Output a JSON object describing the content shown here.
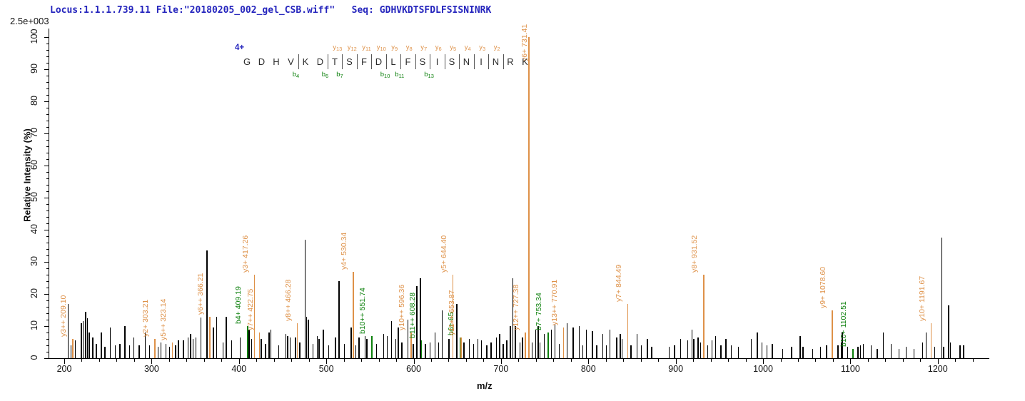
{
  "header": {
    "locus_file": "Locus:1.1.1.739.11 File:\"20180205_002_gel_CSB.wiff\"",
    "separator": "   ",
    "seq": "Seq: GDHVKDTSFDLFSISNINRK"
  },
  "chart_data": {
    "type": "bar",
    "subtype": "ms2-fragmentation-spectrum",
    "xlabel": "m/z",
    "ylabel": "Relative  Intensity (%)",
    "scale_label": "2.5e+003",
    "xlim": [
      183,
      1259
    ],
    "ylim": [
      0,
      100
    ],
    "x_major_ticks": [
      200,
      300,
      400,
      500,
      600,
      700,
      800,
      900,
      1000,
      1100,
      1200
    ],
    "x_minor_step": 20,
    "x_minor_range": [
      200,
      1240
    ],
    "y_major_ticks": [
      0,
      10,
      20,
      30,
      40,
      50,
      60,
      70,
      80,
      90,
      100
    ],
    "y_minor_step": 2,
    "grid": false,
    "legend": "none",
    "colors": {
      "y_ion": "#DE9148",
      "b_ion": "#0C800C",
      "peak": "#000000",
      "charge_blue": "#2525BD"
    },
    "precursor_charge": "4+",
    "peptide": {
      "residues": [
        "G",
        "D",
        "H",
        "V",
        "K",
        "D",
        "T",
        "S",
        "F",
        "D",
        "L",
        "F",
        "S",
        "I",
        "S",
        "N",
        "I",
        "N",
        "R",
        "K"
      ],
      "y_ion_marks": [
        {
          "series": "y",
          "index": "13",
          "gap_after": 7
        },
        {
          "series": "y",
          "index": "12",
          "gap_after": 8
        },
        {
          "series": "y",
          "index": "11",
          "gap_after": 9
        },
        {
          "series": "y",
          "index": "10",
          "gap_after": 10
        },
        {
          "series": "y",
          "index": "9",
          "gap_after": 11
        },
        {
          "series": "y",
          "index": "8",
          "gap_after": 12
        },
        {
          "series": "y",
          "index": "7",
          "gap_after": 13
        },
        {
          "series": "y",
          "index": "6",
          "gap_after": 14
        },
        {
          "series": "y",
          "index": "5",
          "gap_after": 15
        },
        {
          "series": "y",
          "index": "4",
          "gap_after": 16
        },
        {
          "series": "y",
          "index": "3",
          "gap_after": 17
        },
        {
          "series": "y",
          "index": "2",
          "gap_after": 18
        }
      ],
      "b_ion_marks": [
        {
          "series": "b",
          "index": "4",
          "gap_after": 4
        },
        {
          "series": "b",
          "index": "6",
          "gap_after": 6
        },
        {
          "series": "b",
          "index": "7",
          "gap_after": 7
        },
        {
          "series": "b",
          "index": "10",
          "gap_after": 10
        },
        {
          "series": "b",
          "index": "11",
          "gap_after": 11
        },
        {
          "series": "b",
          "index": "13",
          "gap_after": 13
        }
      ]
    },
    "labeled_peaks": [
      {
        "label": "y3++ 209.10",
        "mz": 209.1,
        "pct": 6,
        "type": "y"
      },
      {
        "label": "y2+ 303.21",
        "mz": 303.21,
        "pct": 6,
        "type": "y"
      },
      {
        "label": "y5++ 323.14",
        "mz": 323.14,
        "pct": 5,
        "type": "y"
      },
      {
        "label": "y6++ 366.21",
        "mz": 366.21,
        "pct": 13,
        "type": "y"
      },
      {
        "label": "b4+ 409.19",
        "mz": 409.19,
        "pct": 10,
        "type": "b"
      },
      {
        "label": "y3+ 417.26",
        "mz": 417.26,
        "pct": 26,
        "type": "y"
      },
      {
        "label": "y7++ 422.75",
        "mz": 422.75,
        "pct": 8,
        "type": "y"
      },
      {
        "label": "y8++ 466.28",
        "mz": 466.28,
        "pct": 11,
        "type": "y"
      },
      {
        "label": "y4+ 530.34",
        "mz": 530.34,
        "pct": 27,
        "type": "y"
      },
      {
        "label": "b10++ 551.74",
        "mz": 551.74,
        "pct": 7,
        "type": "b"
      },
      {
        "label": "y10++ 596.36",
        "mz": 596.36,
        "pct": 8,
        "type": "y"
      },
      {
        "label": "b11++ 608.28",
        "mz": 608.28,
        "pct": 5.5,
        "type": "b"
      },
      {
        "label": "y5+ 644.40",
        "mz": 644.4,
        "pct": 26,
        "type": "y"
      },
      {
        "label": "b6+ 65",
        "mz": 652.3,
        "pct": 6.5,
        "type": "b"
      },
      {
        "label": "y11++ 653.87",
        "mz": 653.87,
        "pct": 6.5,
        "type": "y"
      },
      {
        "label": "y12++ 727.38",
        "mz": 727.38,
        "pct": 8,
        "type": "y"
      },
      {
        "label": "y6+ 731.41",
        "mz": 731.41,
        "pct": 100,
        "type": "y"
      },
      {
        "label": "b7+ 753.34",
        "mz": 753.34,
        "pct": 8,
        "type": "b"
      },
      {
        "label": "y13++ 770.91",
        "mz": 770.91,
        "pct": 9.5,
        "type": "y"
      },
      {
        "label": "y7+ 844.49",
        "mz": 844.49,
        "pct": 17,
        "type": "y"
      },
      {
        "label": "y8+ 931.52",
        "mz": 931.52,
        "pct": 26,
        "type": "y"
      },
      {
        "label": "y9+ 1078.60",
        "mz": 1078.6,
        "pct": 15,
        "type": "y"
      },
      {
        "label": "b10+ 1102.51",
        "mz": 1102.51,
        "pct": 3,
        "type": "b"
      },
      {
        "label": "y10+ 1191.67",
        "mz": 1191.67,
        "pct": 11,
        "type": "y"
      }
    ],
    "unlabeled_peaks": [
      [
        204,
        17
      ],
      [
        207,
        4
      ],
      [
        212,
        5.5
      ],
      [
        219,
        11
      ],
      [
        221,
        11.5
      ],
      [
        224,
        14.5
      ],
      [
        226,
        12.5
      ],
      [
        228,
        8
      ],
      [
        232,
        6.5
      ],
      [
        236,
        4.5
      ],
      [
        242,
        8
      ],
      [
        246,
        3.5
      ],
      [
        252,
        9.5
      ],
      [
        258,
        4
      ],
      [
        263,
        4.5
      ],
      [
        269,
        10
      ],
      [
        274,
        4
      ],
      [
        279,
        6.5
      ],
      [
        285,
        4
      ],
      [
        292,
        8
      ],
      [
        297,
        4
      ],
      [
        307,
        3.5
      ],
      [
        310,
        5
      ],
      [
        316,
        4.5
      ],
      [
        320,
        3.5
      ],
      [
        327,
        4
      ],
      [
        330,
        5.5
      ],
      [
        336,
        5.5
      ],
      [
        341,
        6.5
      ],
      [
        344,
        7.5
      ],
      [
        347,
        6
      ],
      [
        350,
        6.5
      ],
      [
        356,
        12.7
      ],
      [
        363,
        33.5
      ],
      [
        370,
        9.5
      ],
      [
        374,
        12.8
      ],
      [
        381,
        5
      ],
      [
        385,
        13
      ],
      [
        391,
        5.5
      ],
      [
        401,
        6.5
      ],
      [
        411,
        9
      ],
      [
        414,
        6
      ],
      [
        425,
        6
      ],
      [
        430,
        4.5
      ],
      [
        434,
        8
      ],
      [
        436,
        9
      ],
      [
        445,
        4
      ],
      [
        453,
        7.5
      ],
      [
        455,
        7
      ],
      [
        458,
        6.5
      ],
      [
        464,
        6.5
      ],
      [
        469,
        5
      ],
      [
        475,
        37
      ],
      [
        477,
        13
      ],
      [
        479,
        12
      ],
      [
        484,
        4.5
      ],
      [
        489,
        7
      ],
      [
        491,
        6
      ],
      [
        496,
        9
      ],
      [
        502,
        4
      ],
      [
        510,
        6.5
      ],
      [
        514,
        24
      ],
      [
        520,
        4.5
      ],
      [
        528,
        9.5
      ],
      [
        533,
        4
      ],
      [
        537,
        6.5
      ],
      [
        544,
        7
      ],
      [
        546,
        6
      ],
      [
        557,
        4.5
      ],
      [
        565,
        7.5
      ],
      [
        569,
        7
      ],
      [
        574,
        11.5
      ],
      [
        579,
        6
      ],
      [
        582,
        9.5
      ],
      [
        586,
        5
      ],
      [
        593,
        12
      ],
      [
        599,
        4.5
      ],
      [
        603,
        22.5
      ],
      [
        607,
        25
      ],
      [
        613,
        4.5
      ],
      [
        618,
        5
      ],
      [
        624,
        8
      ],
      [
        628,
        5
      ],
      [
        632,
        15
      ],
      [
        640,
        6
      ],
      [
        649,
        17
      ],
      [
        657,
        5
      ],
      [
        663,
        6
      ],
      [
        668,
        4.5
      ],
      [
        673,
        6
      ],
      [
        677,
        5.5
      ],
      [
        683,
        4
      ],
      [
        688,
        5
      ],
      [
        694,
        6.5
      ],
      [
        698,
        7.5
      ],
      [
        702,
        4.5
      ],
      [
        706,
        5.5
      ],
      [
        710,
        10
      ],
      [
        713,
        25
      ],
      [
        716,
        10
      ],
      [
        721,
        5
      ],
      [
        724,
        6.5
      ],
      [
        735,
        5
      ],
      [
        739,
        9
      ],
      [
        742,
        10
      ],
      [
        744,
        5
      ],
      [
        749,
        7.5
      ],
      [
        757,
        9
      ],
      [
        761,
        10.5
      ],
      [
        766,
        4.5
      ],
      [
        775,
        11
      ],
      [
        782,
        9.5
      ],
      [
        789,
        10
      ],
      [
        793,
        4
      ],
      [
        797,
        9
      ],
      [
        804,
        8.5
      ],
      [
        809,
        4
      ],
      [
        816,
        7.5
      ],
      [
        820,
        4
      ],
      [
        824,
        9
      ],
      [
        832,
        6.5
      ],
      [
        836,
        7.5
      ],
      [
        838,
        6
      ],
      [
        848,
        4
      ],
      [
        855,
        7.5
      ],
      [
        860,
        4
      ],
      [
        867,
        6
      ],
      [
        872,
        3.5
      ],
      [
        892,
        3.5
      ],
      [
        898,
        4
      ],
      [
        905,
        6
      ],
      [
        913,
        5.5
      ],
      [
        918,
        9
      ],
      [
        920,
        6
      ],
      [
        925,
        6.5
      ],
      [
        928,
        5
      ],
      [
        936,
        4
      ],
      [
        941,
        5.5
      ],
      [
        945,
        7
      ],
      [
        951,
        4
      ],
      [
        957,
        6
      ],
      [
        963,
        4
      ],
      [
        971,
        3.5
      ],
      [
        986,
        6
      ],
      [
        993,
        8
      ],
      [
        998,
        5
      ],
      [
        1004,
        4
      ],
      [
        1010,
        4.5
      ],
      [
        1022,
        3
      ],
      [
        1032,
        3.5
      ],
      [
        1042,
        7
      ],
      [
        1045,
        3.5
      ],
      [
        1056,
        3
      ],
      [
        1065,
        3.5
      ],
      [
        1072,
        4
      ],
      [
        1085,
        4
      ],
      [
        1089,
        5
      ],
      [
        1090,
        8
      ],
      [
        1096,
        3.5
      ],
      [
        1108,
        3.5
      ],
      [
        1111,
        4
      ],
      [
        1114,
        4.5
      ],
      [
        1123,
        4
      ],
      [
        1130,
        3
      ],
      [
        1137,
        8
      ],
      [
        1146,
        4.5
      ],
      [
        1155,
        3
      ],
      [
        1163,
        3.5
      ],
      [
        1172,
        3
      ],
      [
        1182,
        5
      ],
      [
        1186,
        8
      ],
      [
        1196,
        3.5
      ],
      [
        1204,
        37.5
      ],
      [
        1206,
        3.5
      ],
      [
        1212,
        16.5
      ],
      [
        1214,
        5
      ],
      [
        1225,
        4
      ],
      [
        1229,
        4
      ]
    ]
  }
}
